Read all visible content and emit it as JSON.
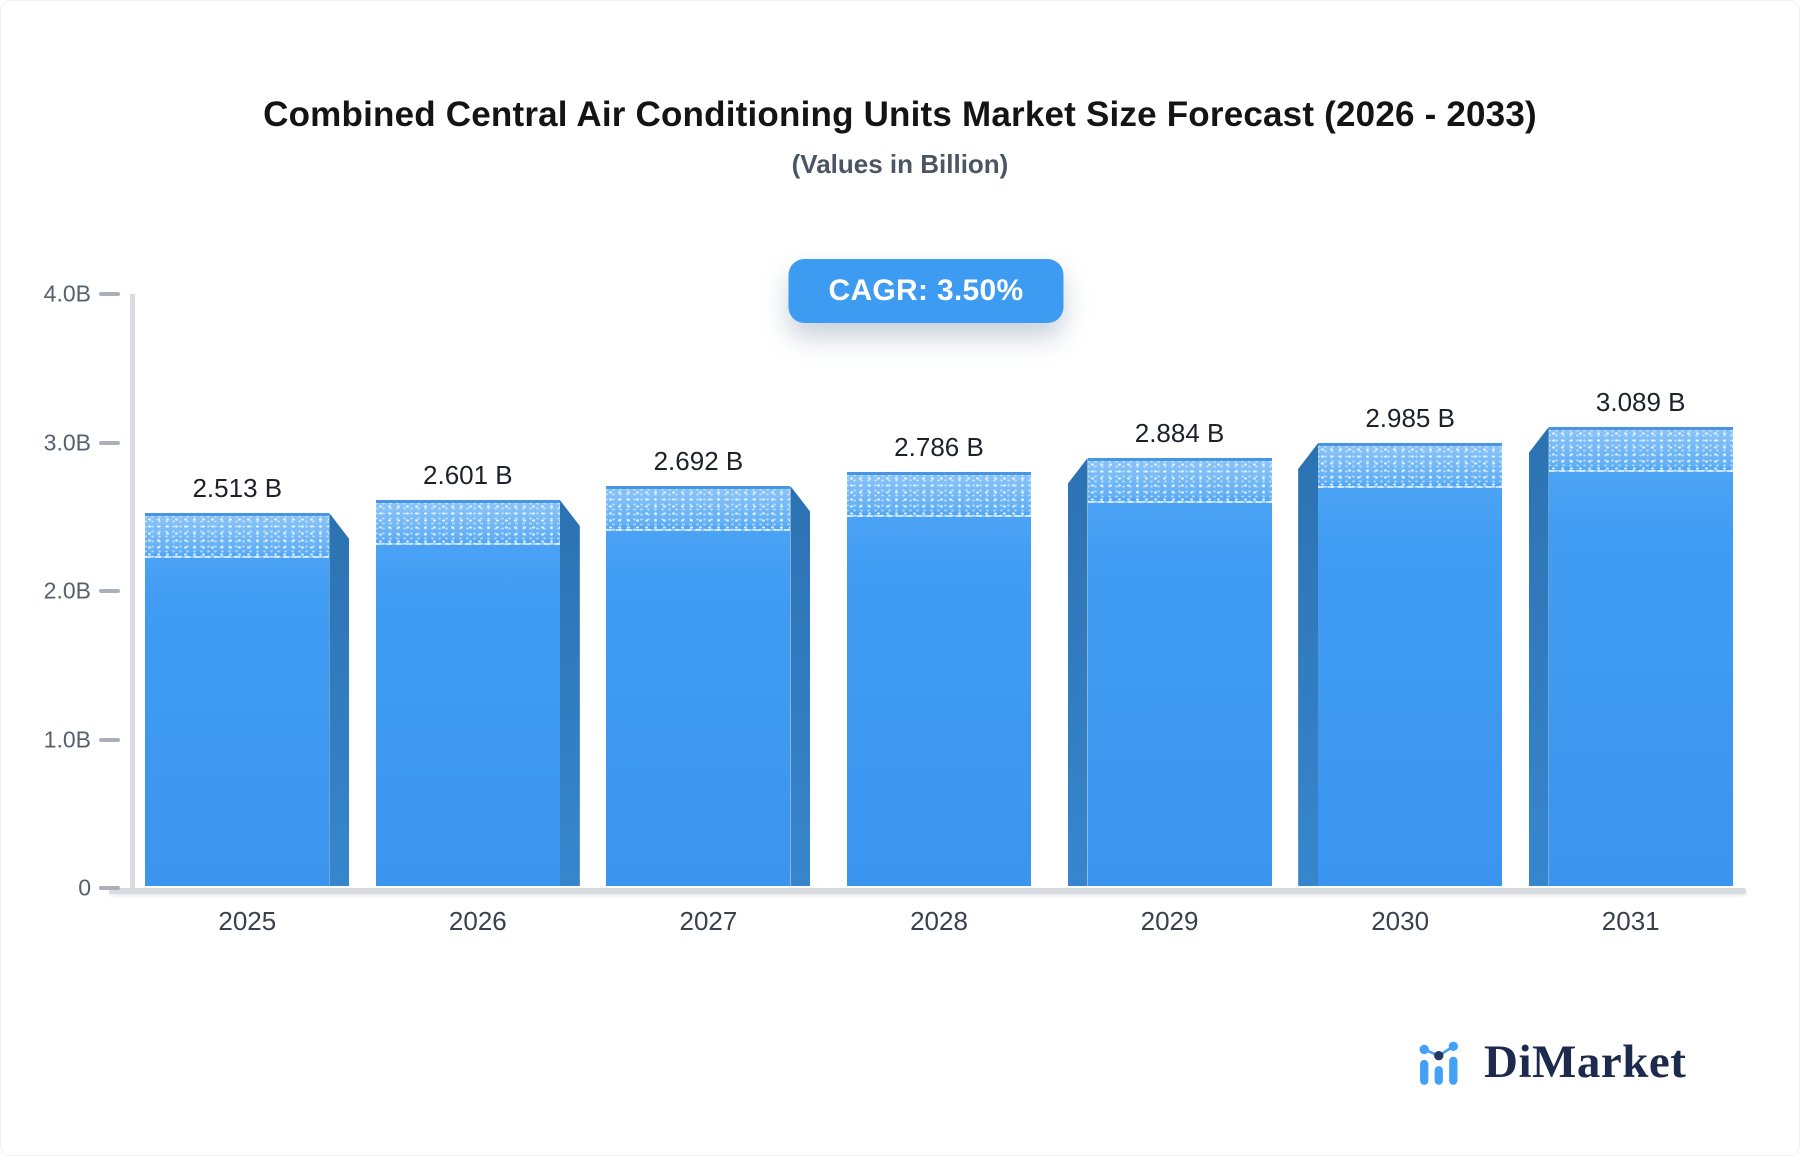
{
  "header": {
    "title": "Combined Central Air Conditioning Units Market Size Forecast (2026 - 2033)",
    "subtitle": "(Values in Billion)",
    "cagr_badge": "CAGR: 3.50%",
    "badge_color": "#3d9cf2"
  },
  "chart_data": {
    "type": "bar",
    "title": "Combined Central Air Conditioning Units Market Size Forecast (2026 - 2033)",
    "subtitle": "(Values in Billion)",
    "categories": [
      "2025",
      "2026",
      "2027",
      "2028",
      "2029",
      "2030",
      "2031"
    ],
    "values": [
      2.513,
      2.601,
      2.692,
      2.786,
      2.884,
      2.985,
      3.089
    ],
    "value_labels": [
      "2.513 B",
      "2.601 B",
      "2.692 B",
      "2.786 B",
      "2.884 B",
      "2.985 B",
      "3.089 B"
    ],
    "xlabel": "",
    "ylabel": "",
    "ylim": [
      0,
      4
    ],
    "y_ticks": [
      {
        "value": 0,
        "label": "0"
      },
      {
        "value": 1,
        "label": "1.0B"
      },
      {
        "value": 2,
        "label": "2.0B"
      },
      {
        "value": 3,
        "label": "3.0B"
      },
      {
        "value": 4,
        "label": "4.0B"
      }
    ],
    "grid": false,
    "legend": "none",
    "bar_face_color": "#3b96f0",
    "bar_top_band_color": "#7fc0f8",
    "bar_side_color": "#2d76b7",
    "axis_color": "#d8dce1",
    "tick_label_color": "#57606e"
  },
  "footer": {
    "logo_text": "DiMarket",
    "logo_icon": "bar-line-chart-icon",
    "logo_text_color": "#1d2a4d",
    "logo_icon_color": "#42a0f6"
  }
}
